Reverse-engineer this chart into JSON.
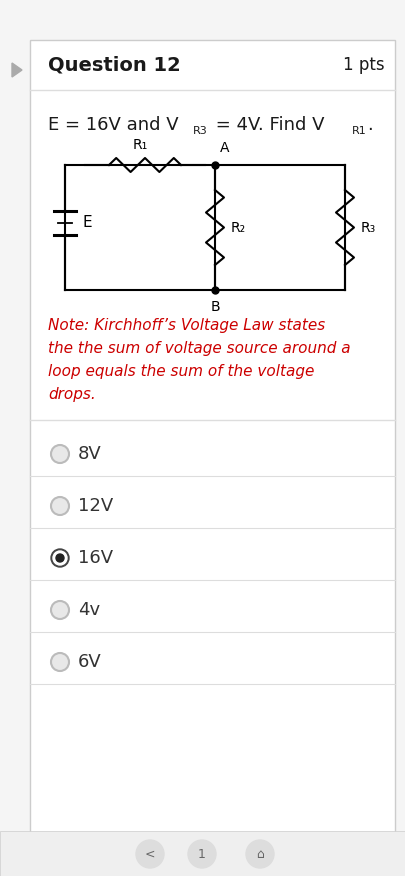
{
  "title": "Question 12",
  "pts": "1 pts",
  "note_text": "Note: Kirchhoff’s Voltage Law states\nthe the sum of voltage source around a\nloop equals the sum of the voltage\ndrops.",
  "options": [
    "8V",
    "12V",
    "16V",
    "4v",
    "6V"
  ],
  "selected_option": 2,
  "bg_color": "#f5f5f5",
  "content_bg": "#ffffff",
  "title_color": "#1a1a1a",
  "note_color": "#cc0000",
  "option_color": "#333333",
  "separator_color": "#dddddd",
  "header_border_color": "#cccccc"
}
